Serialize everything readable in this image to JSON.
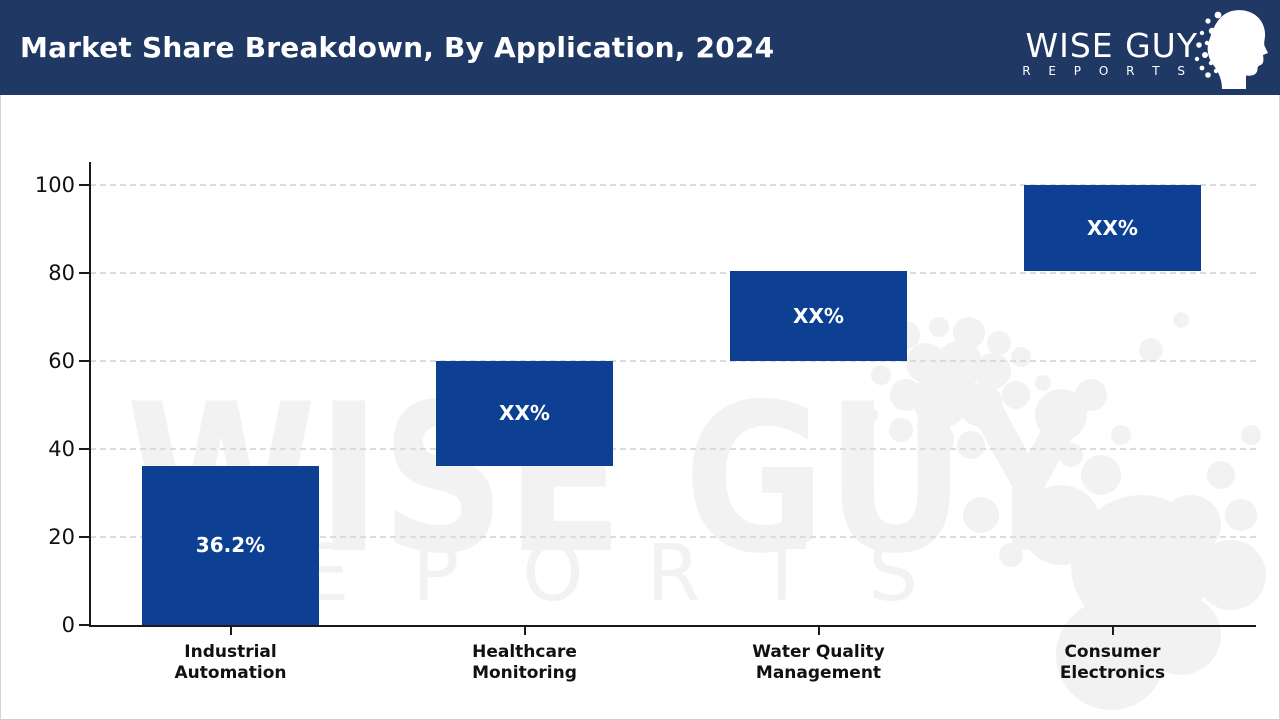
{
  "header": {
    "title": "Market Share Breakdown, By Application, 2024",
    "logo": {
      "line1": "WISE GUY",
      "line2": "R E P O R T S",
      "head_icon": "face-profile-dots-icon"
    }
  },
  "watermark": {
    "line1": "WISE GUY",
    "line2": "REPORTS"
  },
  "chart_data": {
    "type": "bar",
    "subtype": "waterfall",
    "title": "Market Share Breakdown, By Application, 2024",
    "categories": [
      "Industrial\nAutomation",
      "Healthcare\nMonitoring",
      "Water Quality\nManagement",
      "Consumer\nElectronics"
    ],
    "segments": [
      {
        "category": "Industrial Automation",
        "label": "36.2%",
        "start": 0,
        "end": 36.2
      },
      {
        "category": "Healthcare Monitoring",
        "label": "XX%",
        "start": 36.2,
        "end": 60.1
      },
      {
        "category": "Water Quality Management",
        "label": "XX%",
        "start": 60.1,
        "end": 80.4
      },
      {
        "category": "Consumer Electronics",
        "label": "XX%",
        "start": 80.4,
        "end": 100
      }
    ],
    "xlabel": "",
    "ylabel": "",
    "ylim": [
      0,
      105
    ],
    "yticks": [
      0,
      20,
      40,
      60,
      80,
      100
    ],
    "grid": "horizontal-dashed",
    "legend": "none",
    "bar_color": "#0d4092",
    "axis_color": "#1a1a1a",
    "grid_color": "#dcdcdc",
    "header_color": "#1f3864",
    "watermark_color": "#f2f2f3"
  }
}
